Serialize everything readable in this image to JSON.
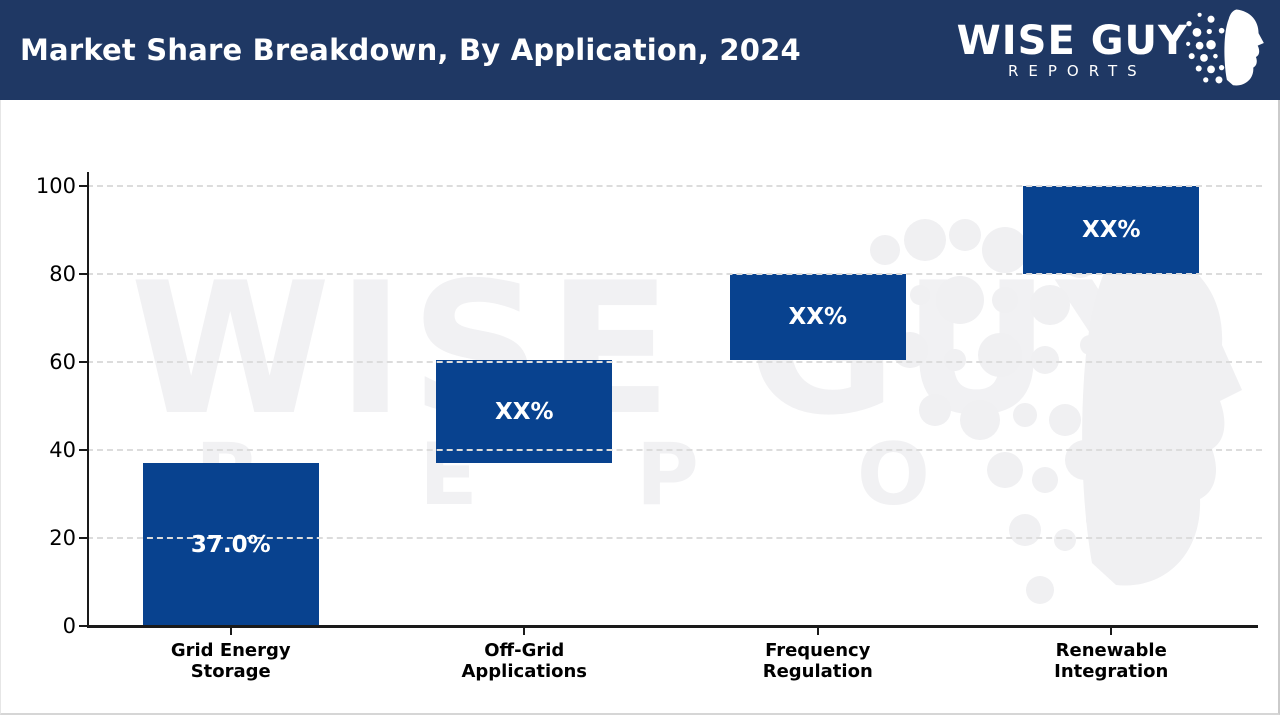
{
  "header": {
    "title": "Market Share Breakdown, By Application, 2024",
    "bg_color": "#1f3864",
    "text_color": "#ffffff",
    "logo": {
      "line1": "WISE GUY",
      "line2": "REPORTS",
      "icon": "face-profile-dots-icon"
    }
  },
  "watermark": {
    "line1": "WISE GUY",
    "line2": "R E P O R T S",
    "color": "#f1f1f3"
  },
  "chart_data": {
    "type": "bar",
    "subtype": "waterfall-floating-segments",
    "title": "Market Share Breakdown, By Application, 2024",
    "categories": [
      "Grid Energy Storage",
      "Off-Grid Applications",
      "Frequency Regulation",
      "Renewable Integration"
    ],
    "category_labels": [
      "Grid Energy\nStorage",
      "Off-Grid\nApplications",
      "Frequency\nRegulation",
      "Renewable\nIntegration"
    ],
    "segments": [
      {
        "category": "Grid Energy Storage",
        "start": 0,
        "end": 37,
        "label": "37.0%"
      },
      {
        "category": "Off-Grid Applications",
        "start": 37,
        "end": 60.5,
        "label": "XX%"
      },
      {
        "category": "Frequency Regulation",
        "start": 60.5,
        "end": 80,
        "label": "XX%"
      },
      {
        "category": "Renewable Integration",
        "start": 80,
        "end": 100,
        "label": "XX%"
      }
    ],
    "xlabel": "",
    "ylabel": "",
    "ylim": [
      0,
      100
    ],
    "yticks": [
      0,
      20,
      40,
      60,
      80,
      100
    ],
    "grid": "horizontal-dashed",
    "legend": "none",
    "bar_color": "#08428f",
    "bar_label_color": "#ffffff",
    "axis_color": "#1a1a1a",
    "gridline_color": "#dcdcdc"
  }
}
